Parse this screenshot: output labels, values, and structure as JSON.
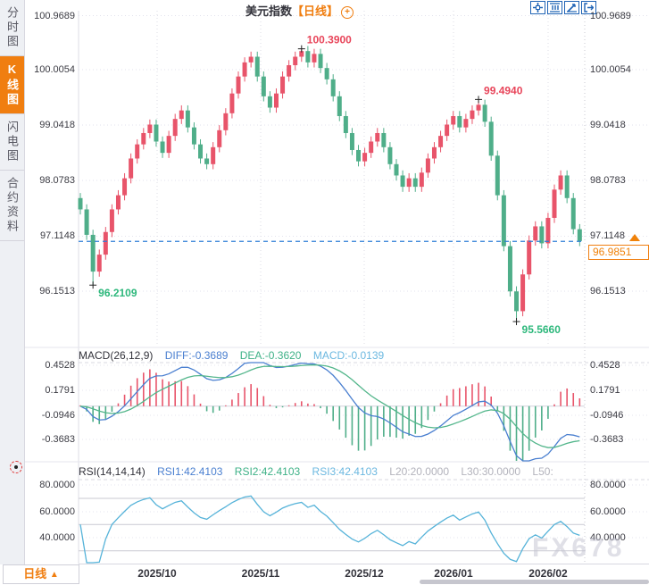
{
  "header": {
    "symbol": "美元指数",
    "period_tag": "【日线】"
  },
  "icons": {
    "circle_plus": "+",
    "arrow_up": "▲"
  },
  "sidebar": {
    "tabs": [
      {
        "label": "分时图",
        "active": false
      },
      {
        "label": "K线图",
        "active": true
      },
      {
        "label": "闪电图",
        "active": false
      },
      {
        "label": "合约资料",
        "active": false
      }
    ]
  },
  "toolbar": {
    "icon_names": [
      "crosshair",
      "measure",
      "trendline",
      "export"
    ]
  },
  "colors": {
    "up": "#e8546a",
    "down": "#4fae89",
    "accent": "#f07e10",
    "diff_line": "#4a7fd0",
    "dea_line": "#53b68b",
    "rsi_line": "#56b3d9",
    "current_line": "#2f7ed8",
    "annotation_high": "#e8455a",
    "annotation_low": "#2eb87c"
  },
  "main_chart": {
    "y_ticks": [
      "100.9689",
      "100.0054",
      "99.0418",
      "98.0783",
      "97.1148",
      "96.1513"
    ],
    "current_price": "96.9851",
    "x_labels": [
      "2025/10",
      "2025/11",
      "2025/12",
      "2026/01",
      "2026/02"
    ],
    "annotations": [
      {
        "text": "100.3900",
        "type": "high",
        "index": 35,
        "price": 100.39
      },
      {
        "text": "99.4940",
        "type": "high",
        "index": 63,
        "price": 99.494
      },
      {
        "text": "96.2109",
        "type": "low",
        "index": 2,
        "price": 96.2109
      },
      {
        "text": "95.5660",
        "type": "low",
        "index": 69,
        "price": 95.566
      }
    ]
  },
  "chart_data": {
    "type": "candlestick",
    "title": "美元指数 日线",
    "price_ticks": [
      100.9689,
      100.0054,
      99.0418,
      98.0783,
      97.1148,
      96.1513
    ],
    "current_price": 96.9851,
    "first_open": 97.75,
    "closes": [
      97.55,
      97.1,
      96.45,
      96.75,
      97.15,
      97.55,
      97.8,
      98.1,
      98.45,
      98.7,
      98.9,
      99.05,
      98.75,
      98.55,
      98.85,
      99.15,
      99.3,
      99.0,
      98.7,
      98.45,
      98.35,
      98.65,
      98.95,
      99.25,
      99.6,
      99.9,
      100.15,
      100.25,
      99.9,
      99.55,
      99.35,
      99.6,
      99.9,
      100.1,
      100.25,
      100.35,
      100.15,
      100.3,
      100.05,
      99.85,
      99.55,
      99.2,
      98.9,
      98.6,
      98.4,
      98.55,
      98.75,
      98.9,
      98.65,
      98.35,
      98.15,
      97.95,
      98.1,
      97.95,
      98.2,
      98.45,
      98.65,
      98.85,
      99.05,
      99.2,
      99.0,
      99.15,
      99.3,
      99.4,
      99.1,
      98.5,
      97.8,
      96.9,
      96.1,
      95.75,
      96.4,
      97.0,
      97.25,
      96.95,
      97.4,
      97.9,
      98.15,
      97.75,
      97.2,
      96.99
    ],
    "extremes": {
      "high1": 100.39,
      "high2": 99.494,
      "low1": 96.2109,
      "low2": 95.566
    }
  },
  "macd": {
    "title": "MACD(26,12,9)",
    "diff_label": "DIFF:-0.3689",
    "dea_label": "DEA:-0.3620",
    "macd_label": "MACD:-0.0139",
    "y_ticks": [
      "0.4528",
      "0.1791",
      "-0.0946",
      "-0.3683"
    ]
  },
  "rsi": {
    "title": "RSI(14,14,14)",
    "rsi1_label": "RSI1:42.4103",
    "rsi2_label": "RSI2:42.4103",
    "rsi3_label": "RSI3:42.4103",
    "l20_label": "L20:20.0000",
    "l30_label": "L30:30.0000",
    "l50_label": "L50:",
    "y_ticks": [
      "80.0000",
      "60.0000",
      "40.0000"
    ]
  },
  "footer": {
    "period_button": "日线"
  },
  "watermark": "FX678"
}
